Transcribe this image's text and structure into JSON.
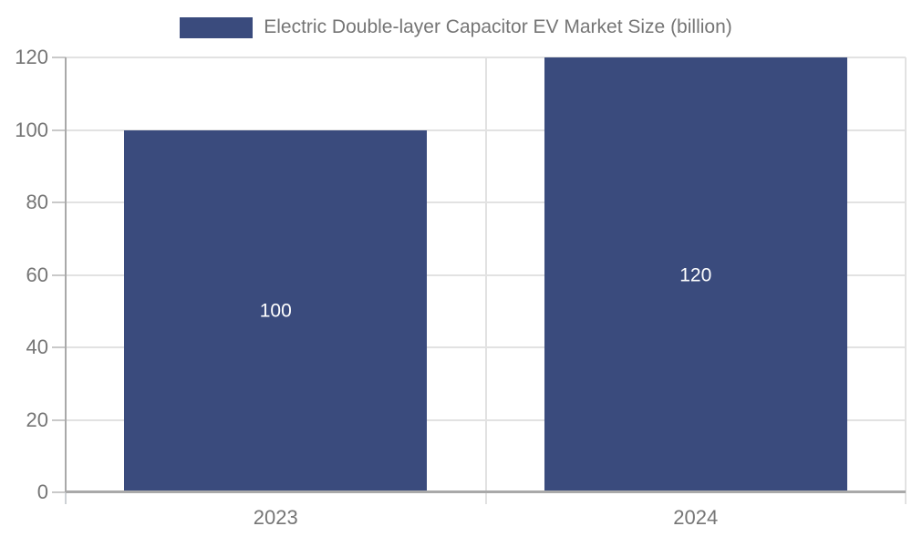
{
  "chart_data": {
    "type": "bar",
    "categories": [
      "2023",
      "2024"
    ],
    "series": [
      {
        "name": "Electric Double-layer Capacitor EV Market Size (billion)",
        "values": [
          100,
          120
        ]
      }
    ],
    "bar_value_labels": [
      "100",
      "120"
    ],
    "ylim": [
      0,
      120
    ],
    "yticks": [
      0,
      20,
      40,
      60,
      80,
      100,
      120
    ],
    "grid": true,
    "legend_position": "top-center",
    "bar_width_fraction": 0.36,
    "colors": {
      "bar": "#3A4B7D",
      "bar_label_text": "#FFFFFF",
      "axis_text": "#757575",
      "legend_text": "#757575",
      "gridline": "#E2E2E2",
      "axis_line": "#A9A9A9",
      "tick": "#C9C9C9",
      "background": "#FFFFFF"
    }
  }
}
